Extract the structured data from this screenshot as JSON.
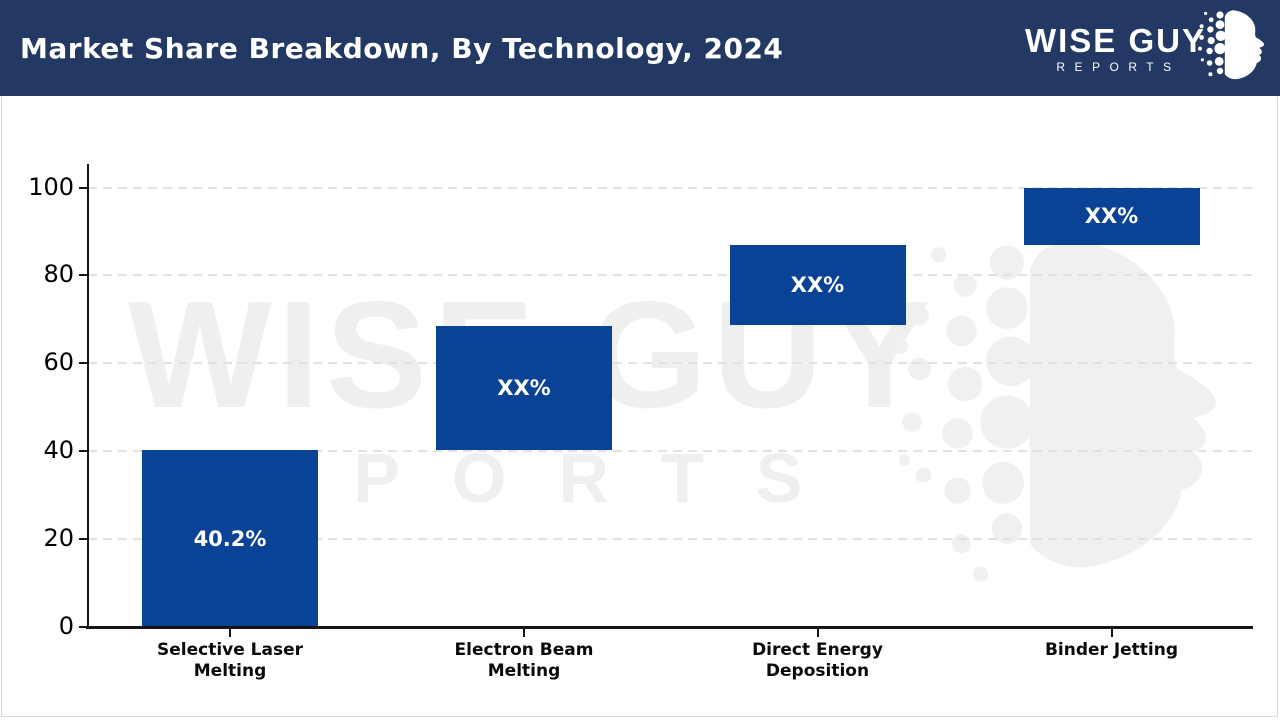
{
  "header": {
    "title": "Market Share Breakdown, By Technology, 2024",
    "logo": {
      "line1": "WISE GUY",
      "line2": "REPORTS"
    }
  },
  "watermark": {
    "line1": "WISE GUY",
    "line2": "REPORTS"
  },
  "colors": {
    "header_bg": "#233964",
    "bar_blue": "#0a4295",
    "gridline": "#e2e2e2",
    "axis": "#151515",
    "watermark_gray": "#efefef"
  },
  "chart_data": {
    "type": "bar",
    "subtype": "waterfall",
    "title": "Market Share Breakdown, By Technology, 2024",
    "categories": [
      "Selective Laser\nMelting",
      "Electron Beam\nMelting",
      "Direct Energy\nDeposition",
      "Binder Jetting"
    ],
    "segments": [
      {
        "category": "Selective Laser Melting",
        "start": 0,
        "end": 40.2,
        "label": "40.2%"
      },
      {
        "category": "Electron Beam Melting",
        "start": 40.2,
        "end": 68.6,
        "label": "XX%"
      },
      {
        "category": "Direct Energy Deposition",
        "start": 68.6,
        "end": 87.0,
        "label": "XX%"
      },
      {
        "category": "Binder Jetting",
        "start": 87.0,
        "end": 100,
        "label": "XX%"
      }
    ],
    "ylim": [
      0,
      100
    ],
    "yticks": [
      0,
      20,
      40,
      60,
      80,
      100
    ],
    "xlabel": "",
    "ylabel": "",
    "grid": "horizontal-dashed",
    "legend": "none",
    "bar_color": "#0a4295",
    "bar_label_color": "#ffffff"
  }
}
